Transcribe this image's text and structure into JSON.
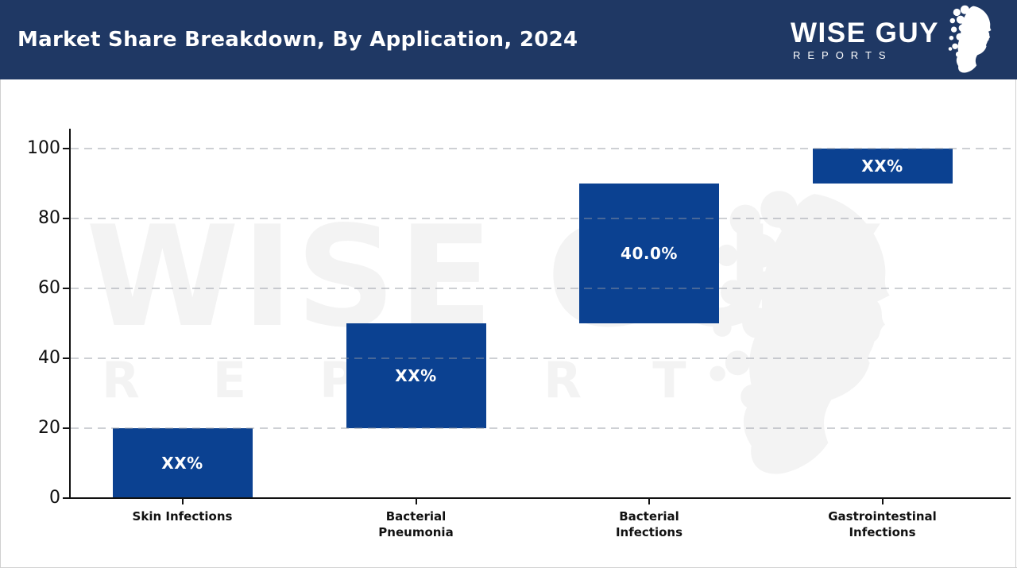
{
  "header": {
    "title": "Market Share Breakdown, By Application, 2024",
    "background_color": "#1f3864",
    "logo": {
      "line1": "WISE GUY",
      "line2": "REPORTS"
    }
  },
  "watermark": {
    "line1": "WISE GUY",
    "line2": "REPORTS"
  },
  "chart_data": {
    "type": "bar",
    "subtype": "floating-waterfall-segments",
    "title": "Market Share Breakdown, By Application, 2024",
    "categories": [
      "Skin Infections",
      "Bacterial Pneumonia",
      "Bacterial Infections",
      "Gastrointestinal Infections"
    ],
    "tick_labels": [
      [
        "Skin Infections"
      ],
      [
        "Bacterial",
        "Pneumonia"
      ],
      [
        "Bacterial",
        "Infections"
      ],
      [
        "Gastrointestinal",
        "Infections"
      ]
    ],
    "bars": [
      {
        "category": "Skin Infections",
        "start": 0,
        "end": 20,
        "label": "XX%"
      },
      {
        "category": "Bacterial Pneumonia",
        "start": 20,
        "end": 50,
        "label": "XX%"
      },
      {
        "category": "Bacterial Infections",
        "start": 50,
        "end": 90,
        "label": "40.0%"
      },
      {
        "category": "Gastrointestinal Infections",
        "start": 90,
        "end": 100,
        "label": "XX%"
      }
    ],
    "yticks": [
      0,
      20,
      40,
      60,
      80,
      100
    ],
    "ylim": [
      0,
      105
    ],
    "xlabel": "",
    "ylabel": "",
    "bar_color": "#0b4191",
    "grid": "horizontal-dashed",
    "legend": "none"
  }
}
